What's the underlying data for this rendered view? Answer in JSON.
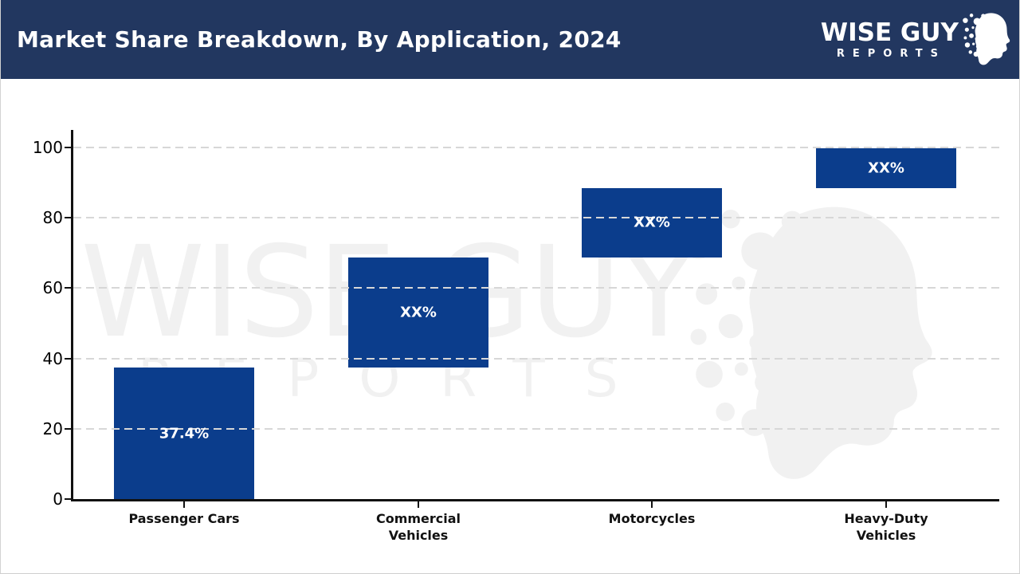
{
  "header": {
    "title": "Market Share Breakdown, By Application, 2024",
    "logo": {
      "wordmark": "WISE GUY",
      "subtext": "REPORTS"
    }
  },
  "watermark": {
    "wordmark": "WISE GUY",
    "subtext": "REPORTS"
  },
  "chart_data": {
    "type": "bar",
    "subtype": "waterfall",
    "title": "Market Share Breakdown, By Application, 2024",
    "categories": [
      "Passenger Cars",
      "Commercial Vehicles",
      "Motorcycles",
      "Heavy-Duty Vehicles"
    ],
    "category_lines": [
      [
        "Passenger Cars"
      ],
      [
        "Commercial",
        "Vehicles"
      ],
      [
        "Motorcycles"
      ],
      [
        "Heavy-Duty",
        "Vehicles"
      ]
    ],
    "segments": [
      {
        "category": "Passenger Cars",
        "start": 0,
        "end": 37.4,
        "value_label": "37.4%"
      },
      {
        "category": "Commercial Vehicles",
        "start": 37.4,
        "end": 68.8,
        "value_label": "XX%"
      },
      {
        "category": "Motorcycles",
        "start": 68.8,
        "end": 88.4,
        "value_label": "XX%"
      },
      {
        "category": "Heavy-Duty Vehicles",
        "start": 88.4,
        "end": 99.8,
        "value_label": "XX%"
      }
    ],
    "yticks": [
      0,
      20,
      40,
      60,
      80,
      100
    ],
    "ylim": [
      0,
      105
    ],
    "xlabel": "",
    "ylabel": "",
    "grid": "dashed-horizontal",
    "legend": "none",
    "bar_color": "#0b3d8c"
  },
  "colors": {
    "header_bg": "#223760",
    "bar": "#0b3d8c",
    "grid": "#d7d7d7",
    "axis": "#111111",
    "bar_label": "#ffffff",
    "watermark": "#f1f1f1"
  }
}
